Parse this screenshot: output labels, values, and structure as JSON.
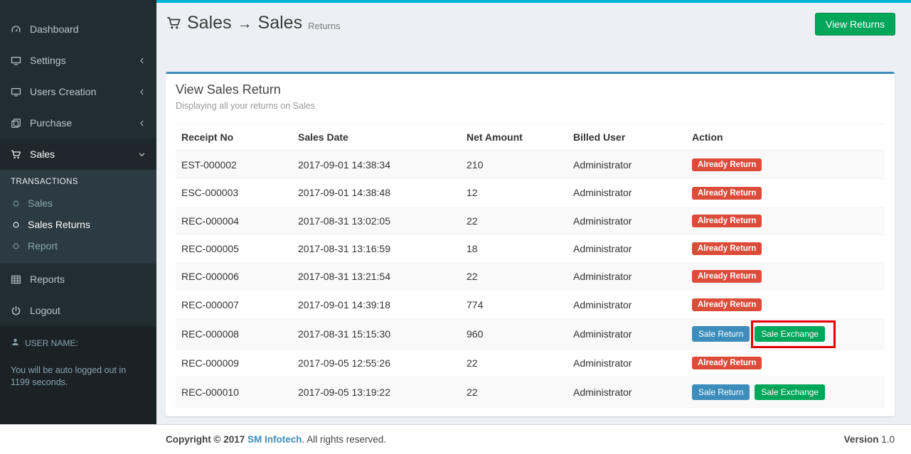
{
  "colors": {
    "sidebar_bg": "#222d32",
    "top_strip_cyan": "#00b4d8",
    "accent_blue": "#3c8dbc",
    "success_green": "#00a65a",
    "danger_red": "#dd4b39",
    "annotation_red": "#e60000"
  },
  "sidebar": {
    "menu": [
      {
        "label": "Dashboard",
        "icon": "dashboard-icon"
      },
      {
        "label": "Settings",
        "icon": "monitor-icon",
        "chevron": "left"
      },
      {
        "label": "Users Creation",
        "icon": "monitor-icon",
        "chevron": "left"
      },
      {
        "label": "Purchase",
        "icon": "copy-icon",
        "chevron": "left"
      },
      {
        "label": "Sales",
        "icon": "cart-icon",
        "chevron": "down",
        "active": true
      }
    ],
    "submenu_header": "TRANSACTIONS",
    "submenu": [
      {
        "label": "Sales"
      },
      {
        "label": "Sales Returns",
        "active": true
      },
      {
        "label": "Report"
      }
    ],
    "menu_bottom": [
      {
        "label": "Reports",
        "icon": "table-icon"
      },
      {
        "label": "Logout",
        "icon": "power-icon"
      }
    ],
    "user_label": "USER NAME:",
    "logout_notice": "You will be auto logged out in 1199 seconds."
  },
  "header": {
    "breadcrumb_primary": "Sales",
    "breadcrumb_arrow": "→",
    "breadcrumb_secondary": "Sales",
    "breadcrumb_sub": "Returns",
    "view_returns_button": "View Returns"
  },
  "panel": {
    "title": "View Sales Return",
    "subtitle": "Displaying all your returns on Sales"
  },
  "table": {
    "columns": [
      "Receipt No",
      "Sales Date",
      "Net Amount",
      "Billed User",
      "Action"
    ],
    "rows": [
      {
        "receipt_no": "EST-000002",
        "sales_date": "2017-09-01 14:38:34",
        "net_amount": "210",
        "billed_user": "Administrator",
        "actions": [
          {
            "label": "Already Return",
            "style": "danger"
          }
        ]
      },
      {
        "receipt_no": "ESC-000003",
        "sales_date": "2017-09-01 14:38:48",
        "net_amount": "12",
        "billed_user": "Administrator",
        "actions": [
          {
            "label": "Already Return",
            "style": "danger"
          }
        ]
      },
      {
        "receipt_no": "REC-000004",
        "sales_date": "2017-08-31 13:02:05",
        "net_amount": "22",
        "billed_user": "Administrator",
        "actions": [
          {
            "label": "Already Return",
            "style": "danger"
          }
        ]
      },
      {
        "receipt_no": "REC-000005",
        "sales_date": "2017-08-31 13:16:59",
        "net_amount": "18",
        "billed_user": "Administrator",
        "actions": [
          {
            "label": "Already Return",
            "style": "danger"
          }
        ]
      },
      {
        "receipt_no": "REC-000006",
        "sales_date": "2017-08-31 13:21:54",
        "net_amount": "22",
        "billed_user": "Administrator",
        "actions": [
          {
            "label": "Already Return",
            "style": "danger"
          }
        ]
      },
      {
        "receipt_no": "REC-000007",
        "sales_date": "2017-09-01 14:39:18",
        "net_amount": "774",
        "billed_user": "Administrator",
        "actions": [
          {
            "label": "Already Return",
            "style": "danger"
          }
        ]
      },
      {
        "receipt_no": "REC-000008",
        "sales_date": "2017-08-31 15:15:30",
        "net_amount": "960",
        "billed_user": "Administrator",
        "actions": [
          {
            "label": "Sale Return",
            "style": "primary"
          },
          {
            "label": "Sale Exchange",
            "style": "success",
            "highlighted": true
          }
        ]
      },
      {
        "receipt_no": "REC-000009",
        "sales_date": "2017-09-05 12:55:26",
        "net_amount": "22",
        "billed_user": "Administrator",
        "actions": [
          {
            "label": "Already Return",
            "style": "danger"
          }
        ]
      },
      {
        "receipt_no": "REC-000010",
        "sales_date": "2017-09-05 13:19:22",
        "net_amount": "22",
        "billed_user": "Administrator",
        "actions": [
          {
            "label": "Sale Return",
            "style": "primary"
          },
          {
            "label": "Sale Exchange",
            "style": "success"
          }
        ]
      }
    ]
  },
  "footer": {
    "copyright_bold": "Copyright © 2017",
    "company": "SM Infotech",
    "rights": ". All rights reserved.",
    "version_label": "Version",
    "version_value": "1.0"
  }
}
